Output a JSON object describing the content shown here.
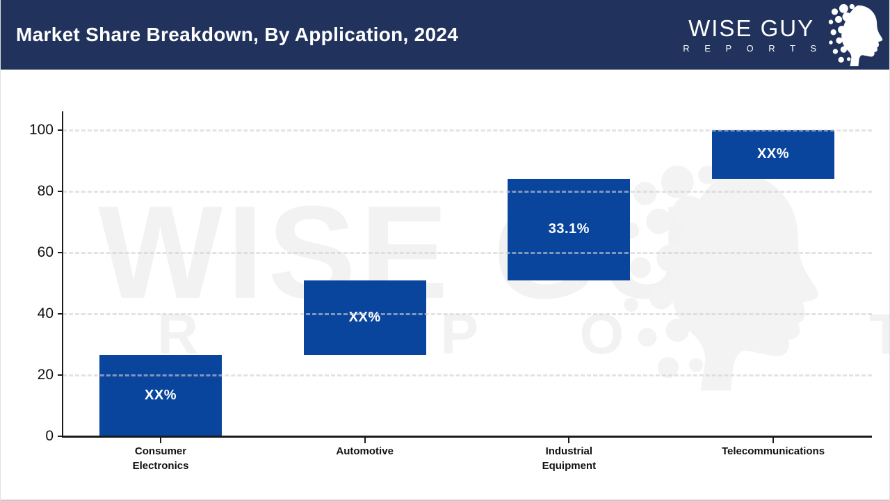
{
  "header": {
    "title": "Market Share Breakdown, By Application, 2024",
    "bg_color": "#21335d",
    "logo": {
      "line1": "WISE GUY",
      "line2": "R E P O R T S"
    }
  },
  "watermark": {
    "line1": "WISE GUY",
    "line2": "R E P O R T S"
  },
  "chart_data": {
    "type": "bar",
    "subtype": "floating-waterfall-columns",
    "title": "Market Share Breakdown, By Application, 2024",
    "categories": [
      "Consumer Electronics",
      "Automotive",
      "Industrial Equipment",
      "Telecommunications"
    ],
    "category_display_lines": [
      [
        "Consumer",
        "Electronics"
      ],
      [
        "Automotive"
      ],
      [
        "Industrial",
        "Equipment"
      ],
      [
        "Telecommunications"
      ]
    ],
    "series": [
      {
        "name": "Market Share (%)",
        "segments": [
          [
            0,
            26.5
          ],
          [
            26.5,
            51.0
          ],
          [
            51.0,
            84.1
          ],
          [
            84.1,
            100.0
          ]
        ],
        "values": [
          26.5,
          24.5,
          33.1,
          15.9
        ]
      }
    ],
    "bar_labels": [
      "XX%",
      "XX%",
      "33.1%",
      "XX%"
    ],
    "xlabel": "",
    "ylabel": "",
    "ylim": [
      0,
      100
    ],
    "yticks": [
      0,
      20,
      40,
      60,
      80,
      100
    ],
    "bar_color": "#0a459d",
    "bar_label_color": "#ffffff",
    "grid": "dashed-horizontal",
    "gridline_color": "#d9d9d9",
    "axis_color": "#1a1a1a",
    "legend": "none"
  }
}
